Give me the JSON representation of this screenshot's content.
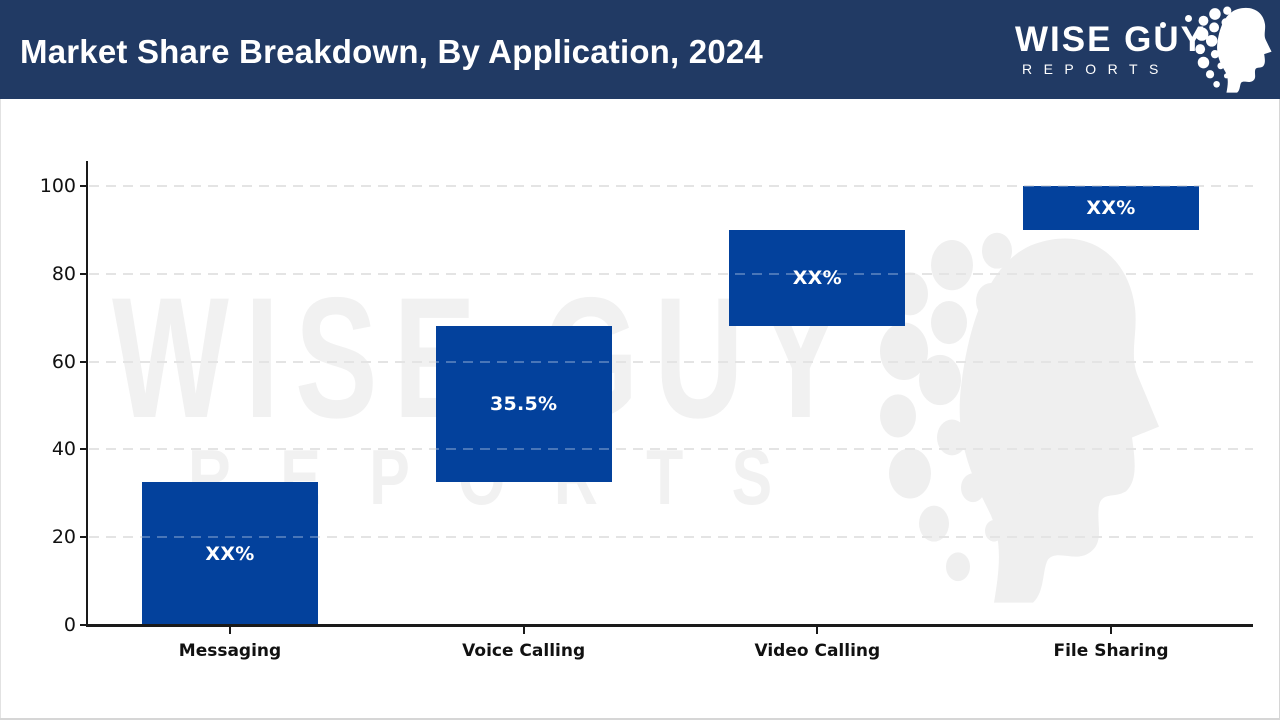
{
  "header": {
    "title": "Market Share Breakdown, By Application, 2024",
    "brand": {
      "line1": "WISE GUY",
      "line2": "REPORTS"
    }
  },
  "watermark": {
    "line1": "WISE GUY",
    "line2": "REPORTS"
  },
  "colors": {
    "header_bg": "#213A64",
    "bar_blue": "#03419C",
    "axis": "#1A1A1A",
    "gridline": "#D9D9D9",
    "watermark_gray": "#F1F1F1",
    "text_dark": "#111111",
    "bar_label_white": "#FFFFFF"
  },
  "chart_data": {
    "type": "bar",
    "variant": "floating-segment-waterfall",
    "title": "Market Share Breakdown, By Application, 2024",
    "categories": [
      "Messaging",
      "Voice Calling",
      "Video Calling",
      "File Sharing"
    ],
    "segments": [
      {
        "category": "Messaging",
        "from": 0,
        "to": 32.5,
        "label": "XX%"
      },
      {
        "category": "Voice Calling",
        "from": 32.5,
        "to": 68,
        "label": "35.5%"
      },
      {
        "category": "Video Calling",
        "from": 68,
        "to": 90,
        "label": "XX%"
      },
      {
        "category": "File Sharing",
        "from": 90,
        "to": 100,
        "label": "XX%"
      }
    ],
    "yticks": [
      0,
      20,
      40,
      60,
      80,
      100
    ],
    "ylim": [
      0,
      105.5
    ],
    "xlabel": "",
    "ylabel": "",
    "grid": "horizontal-dashed",
    "legend": "none",
    "bar_color": "#03419C",
    "bar_label_color": "#FFFFFF"
  }
}
